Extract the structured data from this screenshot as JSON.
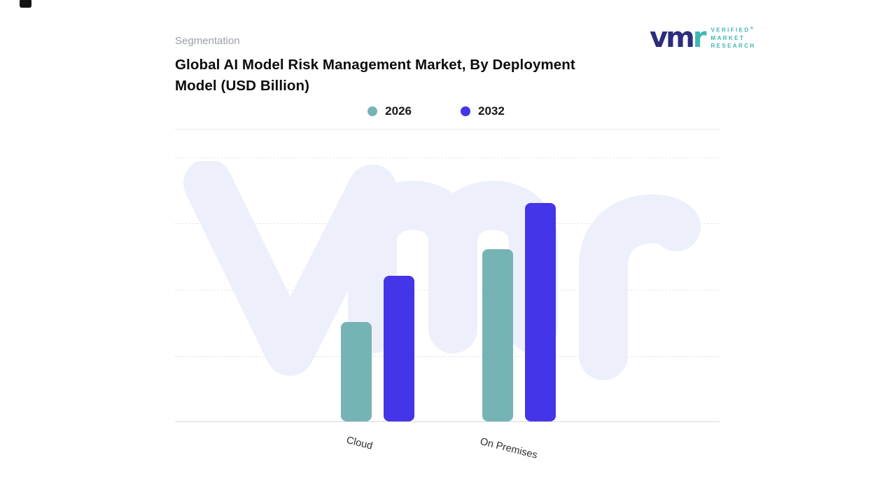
{
  "header": {
    "segmentation_label": "Segmentation",
    "title": "Global AI Model Risk Management Market, By Deployment Model (USD Billion)"
  },
  "logo": {
    "mark_vm": "vm",
    "mark_r": "r",
    "registered": "®",
    "lines": [
      "VERIFIED",
      "MARKET",
      "RESEARCH"
    ],
    "navy": "#2c2d7d",
    "teal": "#3fb6b0"
  },
  "legend": [
    {
      "label": "2026",
      "color": "#76b3b5"
    },
    {
      "label": "2032",
      "color": "#4535e8"
    }
  ],
  "watermark_text": "vmr",
  "chart_data": {
    "type": "bar",
    "title": "Global AI Model Risk Management Market, By Deployment Model (USD Billion)",
    "units": "USD Billion",
    "categories": [
      "Cloud",
      "On Premises"
    ],
    "series": [
      {
        "name": "2026",
        "color": "#76b3b5",
        "values": [
          1.5,
          2.6
        ]
      },
      {
        "name": "2032",
        "color": "#4535e8",
        "values": [
          2.2,
          3.3
        ]
      }
    ],
    "xlabel": "",
    "ylabel": "",
    "ylim": [
      0,
      4
    ],
    "y_axis_visible": false,
    "grid": "horizontal-dashed",
    "legend_position": "top-center"
  }
}
